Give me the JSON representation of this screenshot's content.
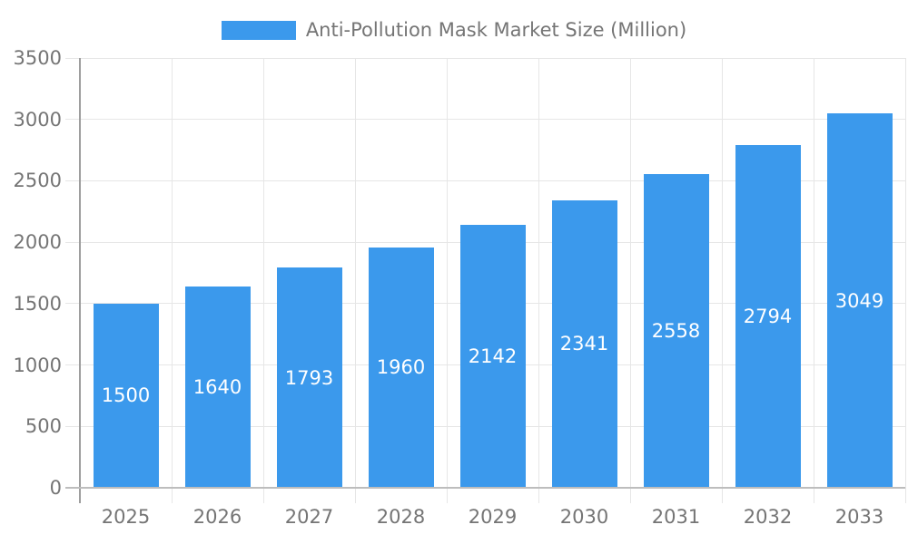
{
  "chart_data": {
    "type": "bar",
    "title": "Anti-Pollution Mask Market Size (Million)",
    "legend_position": "top",
    "categories": [
      "2025",
      "2026",
      "2027",
      "2028",
      "2029",
      "2030",
      "2031",
      "2032",
      "2033"
    ],
    "series": [
      {
        "name": "Anti-Pollution Mask Market Size (Million)",
        "values": [
          1500,
          1640,
          1793,
          1960,
          2142,
          2341,
          2558,
          2794,
          3049
        ]
      }
    ],
    "bar_value_labels_shown": true,
    "bar_value_label_position": "inside-center",
    "xlabel": "",
    "ylabel": "",
    "ylim": [
      0,
      3500
    ],
    "yticks": [
      0,
      500,
      1000,
      1500,
      2000,
      2500,
      3000,
      3500
    ],
    "grid": true,
    "colors": {
      "bar": "#3b99ec",
      "bar_label": "#ffffff",
      "axis_text": "#757575",
      "gridline": "#e6e6e6",
      "y_axis_line": "#9e9e9e",
      "x_axis_line": "#bdbdbd",
      "background": "#ffffff"
    }
  }
}
